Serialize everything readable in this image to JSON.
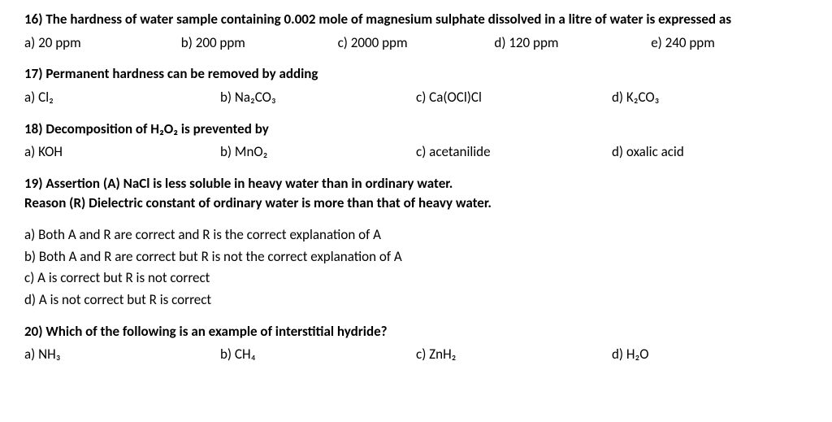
{
  "q16": {
    "text": "16) The hardness of water sample containing 0.002 mole of magnesium sulphate dissolved in a litre of water is expressed as",
    "a": "a) 20 ppm",
    "b": "b) 200 ppm",
    "c": "c) 2000 ppm",
    "d": "d) 120 ppm",
    "e": "e) 240 ppm"
  },
  "q17": {
    "text": "17) Permanent hardness can be removed by adding",
    "a": "a) Cl₂",
    "b": "b) Na₂CO₃",
    "c": "c) Ca(OCl)Cl",
    "d": "d) K₂CO₃"
  },
  "q18": {
    "text": "18) Decomposition of H₂O₂ is prevented by",
    "a": "a) KOH",
    "b": "b) MnO₂",
    "c": "c) acetanilide",
    "d": "d) oxalic acid"
  },
  "q19": {
    "assertion": "19) Assertion (A) NaCl is less soluble in heavy water than in ordinary water.",
    "reason": "Reason (R) Dielectric constant of ordinary water is more than that of heavy water.",
    "a": "a) Both A and R are correct and R is the correct explanation of A",
    "b": "b) Both A and R are correct but R is not the correct explanation of A",
    "c": "c) A is correct but R is not correct",
    "d": "d) A is not correct but R is correct"
  },
  "q20": {
    "text": "20) Which of the following is an example of interstitial hydride?",
    "a": "a) NH₃",
    "b": "b) CH₄",
    "c": "c) ZnH₂",
    "d": "d) H₂O"
  }
}
